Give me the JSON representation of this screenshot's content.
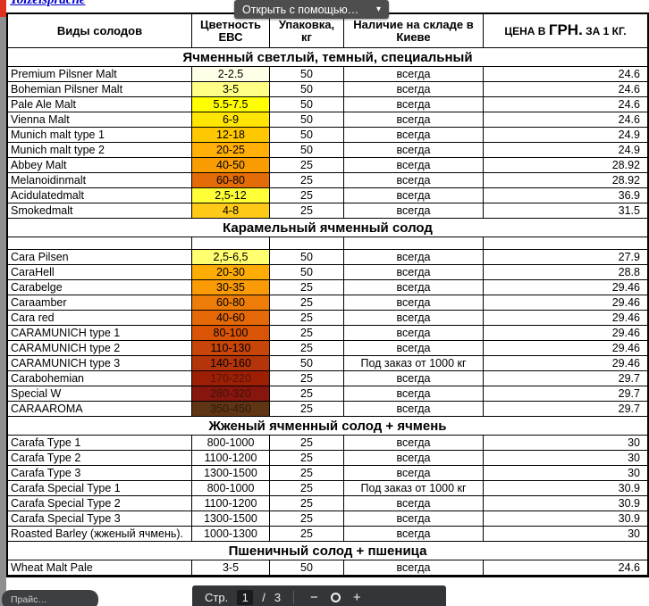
{
  "topbar": {
    "open_with_label": "Открыть с помощью…",
    "dropdown_arrow": "▾"
  },
  "page_link": {
    "text": "Tolzeisprache"
  },
  "table": {
    "headers": {
      "malt": "Виды солодов",
      "ebc_line1": "Цветность",
      "ebc_line2": "ЕВС",
      "pack_line1": "Упаковка,",
      "pack_line2": "кг",
      "stock": "Наличие на складе в Киеве",
      "price_part1": "ЦЕНА В ",
      "price_part2": "ГРН.",
      "price_part3": " ЗА 1 КГ."
    },
    "sections": [
      {
        "title": "Ячменный светлый, темный, специальный",
        "spacer_row": false,
        "rows": [
          {
            "name": "Premium Pilsner Malt",
            "ebc": "2-2.5",
            "pack": "50",
            "stock": "всегда",
            "price": "24.6",
            "bg": "#FFFFE8"
          },
          {
            "name": "Bohemian Pilsner Malt",
            "ebc": "3-5",
            "pack": "50",
            "stock": "всегда",
            "price": "24.6",
            "bg": "#FFFF85"
          },
          {
            "name": "Pale Ale Malt",
            "ebc": "5.5-7.5",
            "pack": "50",
            "stock": "всегда",
            "price": "24.6",
            "bg": "#FFFF00"
          },
          {
            "name": "Vienna Malt",
            "ebc": "6-9",
            "pack": "50",
            "stock": "всегда",
            "price": "24.6",
            "bg": "#FFE503"
          },
          {
            "name": "Munich malt  type 1",
            "ebc": "12-18",
            "pack": "50",
            "stock": "всегда",
            "price": "24.9",
            "bg": "#FFC800"
          },
          {
            "name": "Munich malt type 2",
            "ebc": "20-25",
            "pack": "50",
            "stock": "всегда",
            "price": "24.9",
            "bg": "#FFAF05"
          },
          {
            "name": "Abbey Malt",
            "ebc": "40-50",
            "pack": "25",
            "stock": "всегда",
            "price": "28.92",
            "bg": "#F89C02"
          },
          {
            "name": "Melanoidinmalt",
            "ebc": "60-80",
            "pack": "25",
            "stock": "всегда",
            "price": "28.92",
            "bg": "#E36C09"
          },
          {
            "name": "Acidulatedmalt",
            "ebc": "2,5-12",
            "pack": "25",
            "stock": "всегда",
            "price": "36.9",
            "bg": "#FFFF38"
          },
          {
            "name": "Smokedmalt",
            "ebc": "4-8",
            "pack": "25",
            "stock": "всегда",
            "price": "31.5",
            "bg": "#FFC917"
          }
        ]
      },
      {
        "title": "Карамельный ячменный солод",
        "spacer_row": true,
        "rows": [
          {
            "name": "Cara Pilsen",
            "ebc": "2,5-6,5",
            "pack": "50",
            "stock": "всегда",
            "price": "27.9",
            "bg": "#FFFF70"
          },
          {
            "name": "CaraHell",
            "ebc": "20-30",
            "pack": "50",
            "stock": "всегда",
            "price": "28.8",
            "bg": "#FFAD04"
          },
          {
            "name": "Carabelge",
            "ebc": "30-35",
            "pack": "25",
            "stock": "всегда",
            "price": "29.46",
            "bg": "#FA9A04"
          },
          {
            "name": "Caraamber",
            "ebc": "60-80",
            "pack": "25",
            "stock": "всегда",
            "price": "29.46",
            "bg": "#ED7D08"
          },
          {
            "name": "Cara red",
            "ebc": "40-60",
            "pack": "25",
            "stock": "всегда",
            "price": "29.46",
            "bg": "#E56908"
          },
          {
            "name": "CARAMUNICH type 1",
            "ebc": "80-100",
            "pack": "25",
            "stock": "всегда",
            "price": "29.46",
            "bg": "#DA5407"
          },
          {
            "name": "CARAMUNICH  type 2",
            "ebc": "110-130",
            "pack": "25",
            "stock": "всегда",
            "price": "29.46",
            "bg": "#C84509"
          },
          {
            "name": "CARAMUNICH  type 3",
            "ebc": "140-160",
            "pack": "50",
            "stock": "Под заказ от 1000 кг",
            "price": "29.46",
            "bg": "#B5350A"
          },
          {
            "name": "Carabohemian",
            "ebc": "170-220",
            "pack": "25",
            "stock": "всегда",
            "price": "29.7",
            "bg": "#9D2005",
            "fg": "#57120A"
          },
          {
            "name": "Special W",
            "ebc": "280-320",
            "pack": "25",
            "stock": "всегда",
            "price": "29.7",
            "bg": "#87170E",
            "fg": "#47100A"
          },
          {
            "name": "CARAAROMA",
            "ebc": "350-450",
            "pack": "25",
            "stock": "всегда",
            "price": "29.7",
            "bg": "#5F3513",
            "fg": "#2E1C0B"
          }
        ]
      },
      {
        "title": "Жженый ячменный солод + ячмень",
        "spacer_row": false,
        "rows": [
          {
            "name": "Carafa Type 1",
            "ebc": "800-1000",
            "pack": "25",
            "stock": "всегда",
            "price": "30",
            "bg": "#FFFFFF"
          },
          {
            "name": "Carafa Type 2",
            "ebc": "1100-1200",
            "pack": "25",
            "stock": "всегда",
            "price": "30",
            "bg": "#FFFFFF"
          },
          {
            "name": "Carafa  Type 3",
            "ebc": "1300-1500",
            "pack": "25",
            "stock": "всегда",
            "price": "30",
            "bg": "#FFFFFF"
          },
          {
            "name": "Carafa Special  Type 1",
            "ebc": "800-1000",
            "pack": "25",
            "stock": "Под заказ от 1000 кг",
            "price": "30.9",
            "bg": "#FFFFFF"
          },
          {
            "name": "Carafa  Special Type 2",
            "ebc": "1100-1200",
            "pack": "25",
            "stock": "всегда",
            "price": "30.9",
            "bg": "#FFFFFF"
          },
          {
            "name": "Carafa Special Type 3",
            "ebc": "1300-1500",
            "pack": "25",
            "stock": "всегда",
            "price": "30.9",
            "bg": "#FFFFFF"
          },
          {
            "name": "Roasted Barley (жженый ячмень).",
            "ebc": "1000-1300",
            "pack": "25",
            "stock": "всегда",
            "price": "30",
            "bg": "#FFFFFF"
          }
        ]
      },
      {
        "title": "Пшеничный солод + пшеница",
        "spacer_row": false,
        "rows": [
          {
            "name": "Wheat Malt Pale",
            "ebc": "3-5",
            "pack": "50",
            "stock": "всегда",
            "price": "24.6",
            "bg": "#FFFFFF"
          }
        ]
      }
    ]
  },
  "pdf_toolbar": {
    "page_label": "Стр.",
    "page_current": "1",
    "page_separator": "/",
    "page_total": "3",
    "minus_icon": "−",
    "plus_icon": "+"
  },
  "download_pill": {
    "label": "Прайс…"
  }
}
